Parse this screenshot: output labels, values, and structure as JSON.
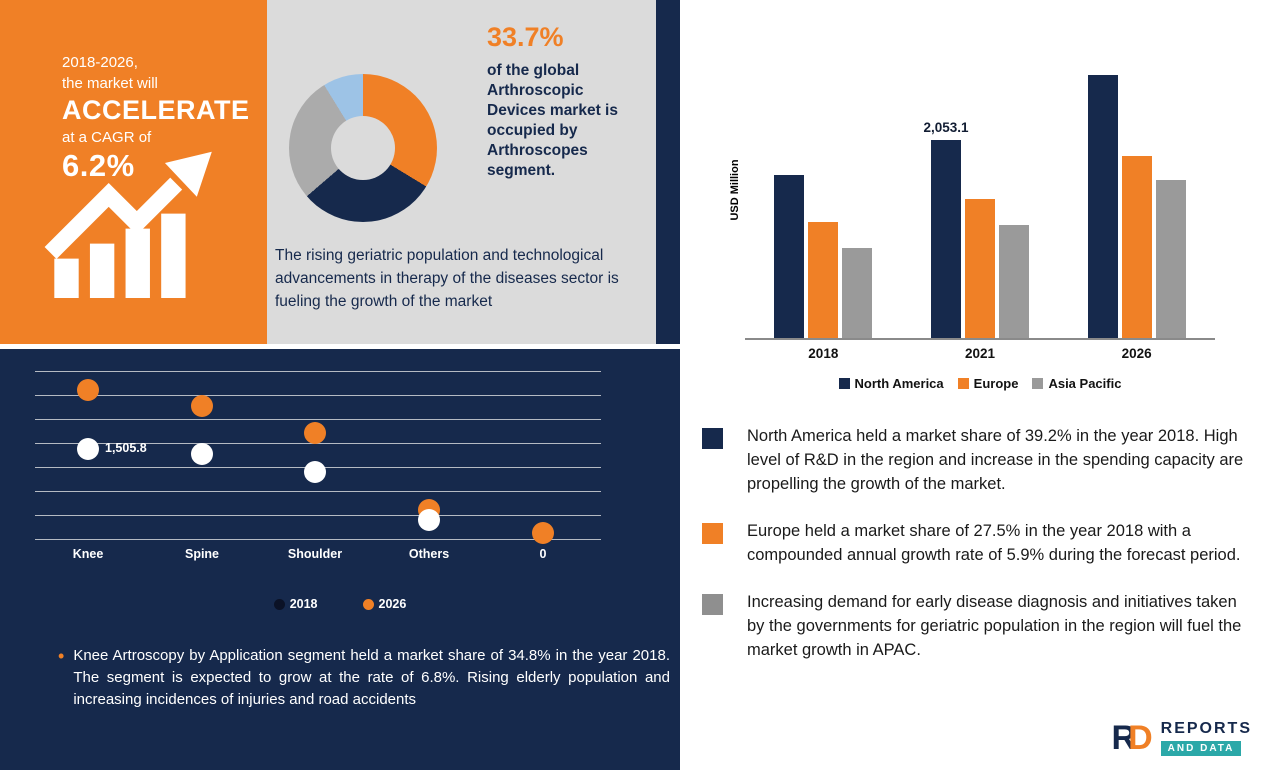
{
  "theme": {
    "orange": "#F08026",
    "navy": "#16294C",
    "panel_gray": "#DBDBDB",
    "bar_gray": "#9A9A9A",
    "light_blue": "#9DC3E6",
    "teal": "#2BA8A8"
  },
  "cagr_panel": {
    "period": "2018-2026,",
    "line2": "the market will",
    "accelerate": "ACCELERATE",
    "cagr_label": "at a CAGR of",
    "cagr_value": "6.2%"
  },
  "segment_panel": {
    "share_value": "33.7%",
    "share_text": "of the global Arthroscopic Devices market  is occupied by Arthroscopes segment.",
    "driver_text": "The rising geriatric population and technological advancements in therapy of the diseases  sector is fueling the growth of the market"
  },
  "application_panel": {
    "bullet_text": "Knee Artroscopy by Application segment held a market share of 34.8% in the year 2018. The segment is expected to grow at the rate of 6.8%. Rising elderly population and increasing incidences of injuries and road accidents"
  },
  "regional_panel": {
    "y_axis_label": "USD Million",
    "bullets": [
      {
        "color": "#16294C",
        "text": "North America held a market share of  39.2% in the year 2018. High level of R&D in the region and increase in the spending capacity are propelling the growth of the market."
      },
      {
        "color": "#F08026",
        "text": "Europe held a market share of 27.5% in the year 2018 with a compounded  annual growth rate of 5.9% during the forecast period."
      },
      {
        "color": "#8F8F8F",
        "text": "Increasing demand for early disease diagnosis and initiatives taken by the governments for geriatric population in the region will fuel the market growth in APAC."
      }
    ]
  },
  "logo": {
    "mark_r": "R",
    "mark_d": "D",
    "line1": "REPORTS",
    "line2": "AND DATA"
  },
  "chart_data": [
    {
      "type": "pie",
      "variant": "donut",
      "segments": [
        {
          "label": "Arthroscopes",
          "value": 33.7,
          "color": "#F08026"
        },
        {
          "label": "",
          "value": 30.0,
          "color": "#16294C"
        },
        {
          "label": "",
          "value": 27.5,
          "color": "#ABABAB"
        },
        {
          "label": "",
          "value": 8.8,
          "color": "#9DC3E6"
        }
      ]
    },
    {
      "type": "scatter",
      "categories": [
        "Knee",
        "Spine",
        "Shoulder",
        "Others",
        "0"
      ],
      "ylim": [
        0,
        2800
      ],
      "gridlines": 8,
      "series": [
        {
          "name": "2018",
          "color": "#FFFFFF",
          "values": [
            1505.8,
            1410,
            1120,
            320,
            null
          ]
        },
        {
          "name": "2026",
          "color": "#F08026",
          "values": [
            2480,
            2220,
            1760,
            490,
            100
          ]
        }
      ],
      "data_labels": [
        {
          "series": "2018",
          "category": "Knee",
          "text": "1,505.8"
        }
      ]
    },
    {
      "type": "bar",
      "categories": [
        "2018",
        "2021",
        "2026"
      ],
      "ylabel": "USD Million",
      "ylim": [
        0,
        2900
      ],
      "legend_position": "bottom",
      "series": [
        {
          "name": "North America",
          "color": "#16294C",
          "values": [
            1690,
            2053.1,
            2725
          ]
        },
        {
          "name": "Europe",
          "color": "#F08026",
          "values": [
            1200,
            1435,
            1890
          ]
        },
        {
          "name": "Asia Pacific",
          "color": "#9A9A9A",
          "values": [
            930,
            1175,
            1640
          ]
        }
      ],
      "data_labels": [
        {
          "series": "North America",
          "category": "2021",
          "text": "2,053.1"
        }
      ]
    }
  ]
}
